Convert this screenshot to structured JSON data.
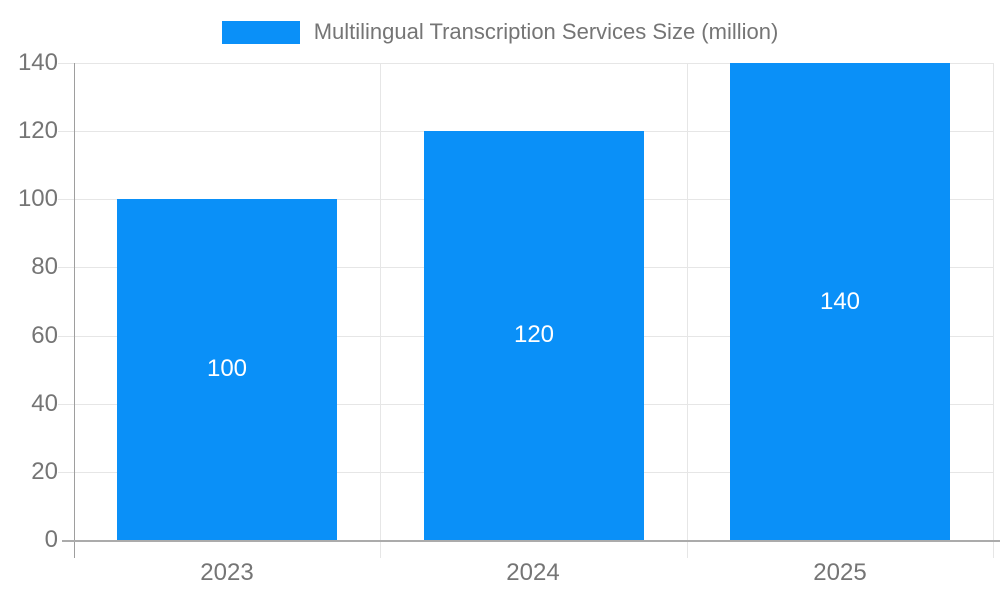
{
  "chart_data": {
    "type": "bar",
    "title": "Multilingual Transcription Services Size (million)",
    "categories": [
      "2023",
      "2024",
      "2025"
    ],
    "values": [
      100,
      120,
      140
    ],
    "xlabel": "",
    "ylabel": "",
    "ylim": [
      0,
      140
    ],
    "ytick_step": 20,
    "ytick_labels": [
      "0",
      "20",
      "40",
      "60",
      "80",
      "100",
      "120",
      "140"
    ],
    "data_labels": [
      "100",
      "120",
      "140"
    ],
    "legend_position": "top-center",
    "grid": true,
    "bar_color": "#0a90f8",
    "label_text_color": "#757575",
    "data_label_color": "#ffffff",
    "gridline_color": "#e6e6e6",
    "axis_line_color": "#9e9e9e"
  },
  "legend": {
    "label": "Multilingual Transcription Services Size (million)"
  }
}
